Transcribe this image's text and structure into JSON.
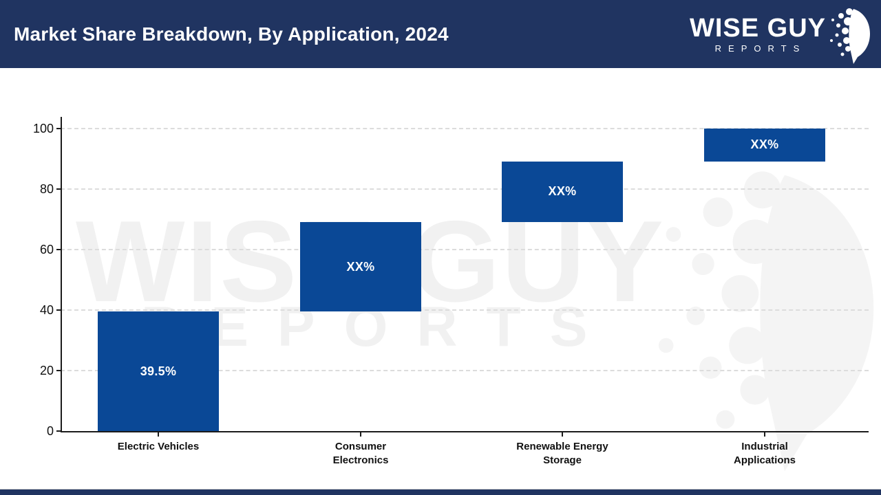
{
  "header": {
    "title": "Market Share Breakdown, By Application, 2024",
    "logo": {
      "line1": "WISE GUY",
      "line2": "REPORTS"
    }
  },
  "watermark": {
    "line1": "WISE GUY",
    "line2": "REPORTS"
  },
  "chart_data": {
    "type": "bar",
    "subtype": "waterfall",
    "title": "Market Share Breakdown, By Application, 2024",
    "categories": [
      [
        "Electric Vehicles"
      ],
      [
        "Consumer",
        "Electronics"
      ],
      [
        "Renewable Energy",
        "Storage"
      ],
      [
        "Industrial",
        "Applications"
      ]
    ],
    "segments": [
      {
        "name": "Electric Vehicles",
        "start": 0,
        "end": 39.5,
        "value_label": "39.5%"
      },
      {
        "name": "Consumer Electronics",
        "start": 39.5,
        "end": 69.1,
        "value_label": "XX%"
      },
      {
        "name": "Renewable Energy Storage",
        "start": 69.1,
        "end": 89.1,
        "value_label": "XX%"
      },
      {
        "name": "Industrial Applications",
        "start": 89.1,
        "end": 100,
        "value_label": "XX%"
      }
    ],
    "y_ticks": [
      0,
      20,
      40,
      60,
      80,
      100
    ],
    "ylim": [
      0,
      104
    ],
    "xlabel": "",
    "ylabel": "",
    "grid": "horizontal-dashed",
    "legend": "none",
    "bar_color": "#0a4896",
    "header_color": "#203461"
  }
}
